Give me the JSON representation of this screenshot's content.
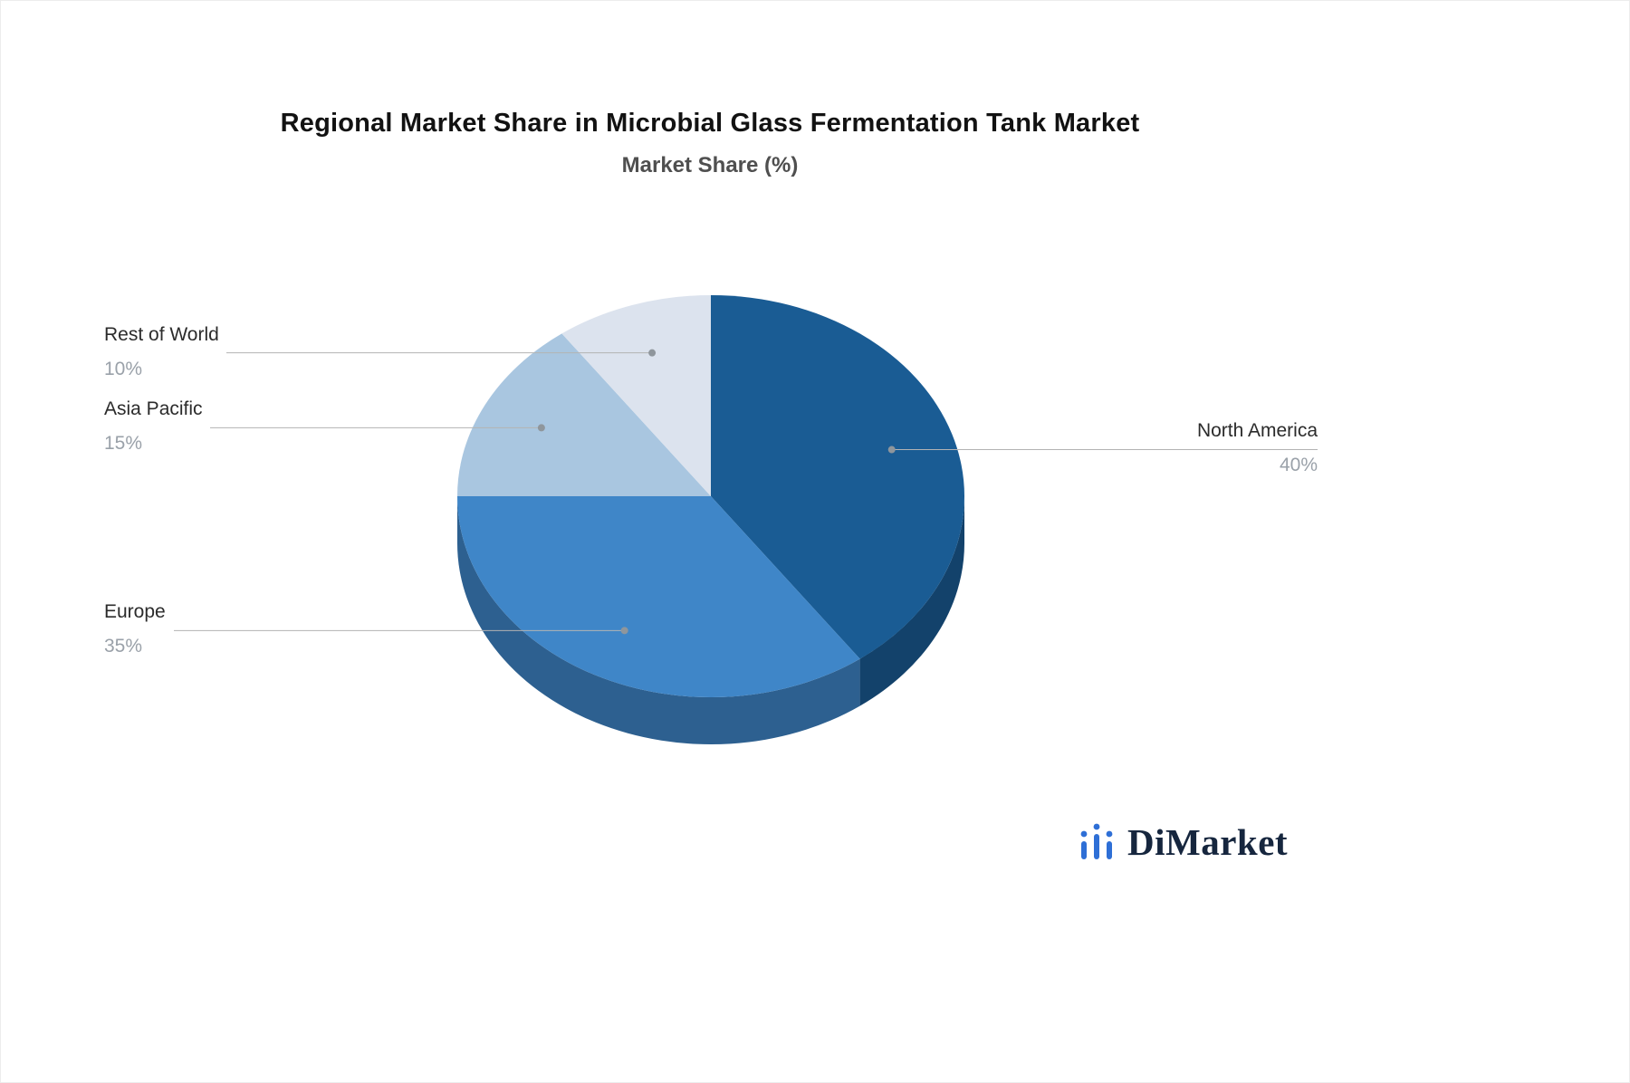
{
  "title": "Regional Market Share in Microbial Glass Fermentation Tank Market",
  "subtitle": "Market Share (%)",
  "brand": {
    "name": "DiMarket",
    "icon": "bar-chart-dots-icon",
    "icon_color": "#2e6fd6",
    "text_color": "#16263e"
  },
  "chart_data": {
    "type": "pie",
    "style": "3d",
    "title": "Regional Market Share in Microbial Glass Fermentation Tank Market",
    "subtitle": "Market Share (%)",
    "unit": "%",
    "direction": "clockwise",
    "start_angle_deg": 0,
    "legend_position": "callout-labels",
    "slices": [
      {
        "label": "North America",
        "value": 40,
        "display": "40%",
        "color": "#1a5c94"
      },
      {
        "label": "Europe",
        "value": 35,
        "display": "35%",
        "color": "#3f86c8"
      },
      {
        "label": "Asia Pacific",
        "value": 15,
        "display": "15%",
        "color": "#a9c6e0"
      },
      {
        "label": "Rest of World",
        "value": 10,
        "display": "10%",
        "color": "#dce3ee"
      }
    ]
  }
}
